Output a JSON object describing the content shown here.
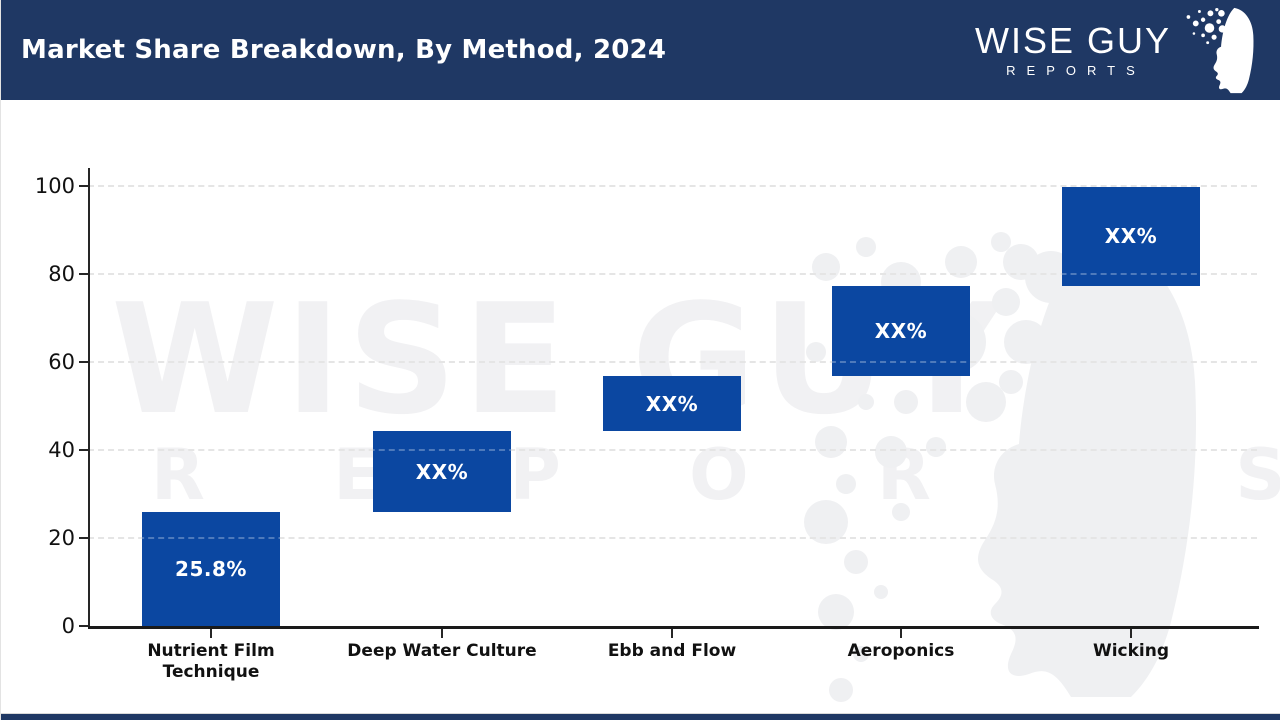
{
  "header": {
    "title": "Market Share Breakdown, By Method, 2024",
    "bg_color": "#1f3864",
    "logo": {
      "line1": "WISE GUY",
      "line2": "REPORTS"
    }
  },
  "watermark": {
    "line1": "WISE GUY",
    "line2": "R E P O R T S"
  },
  "chart_data": {
    "type": "bar",
    "subtype": "waterfall",
    "title": "Market Share Breakdown, By Method, 2024",
    "xlabel": "",
    "ylabel": "",
    "categories": [
      "Nutrient Film Technique",
      "Deep Water Culture",
      "Ebb and Flow",
      "Aeroponics",
      "Wicking"
    ],
    "segments": [
      {
        "category": "Nutrient Film Technique",
        "start": 0,
        "end": 25.8,
        "label": "25.8%"
      },
      {
        "category": "Deep Water Culture",
        "start": 25.8,
        "end": 44.3,
        "label": "XX%"
      },
      {
        "category": "Ebb and Flow",
        "start": 44.3,
        "end": 56.8,
        "label": "XX%"
      },
      {
        "category": "Aeroponics",
        "start": 56.8,
        "end": 77.3,
        "label": "XX%"
      },
      {
        "category": "Wicking",
        "start": 77.3,
        "end": 99.8,
        "label": "XX%"
      }
    ],
    "y_ticks": [
      0,
      20,
      40,
      60,
      80,
      100
    ],
    "ylim": [
      0,
      104
    ],
    "grid": true,
    "grid_style": "dashed",
    "legend": "none",
    "bar_color": "#0b47a1",
    "bar_label_color": "#ffffff",
    "axis_color": "#262626"
  }
}
